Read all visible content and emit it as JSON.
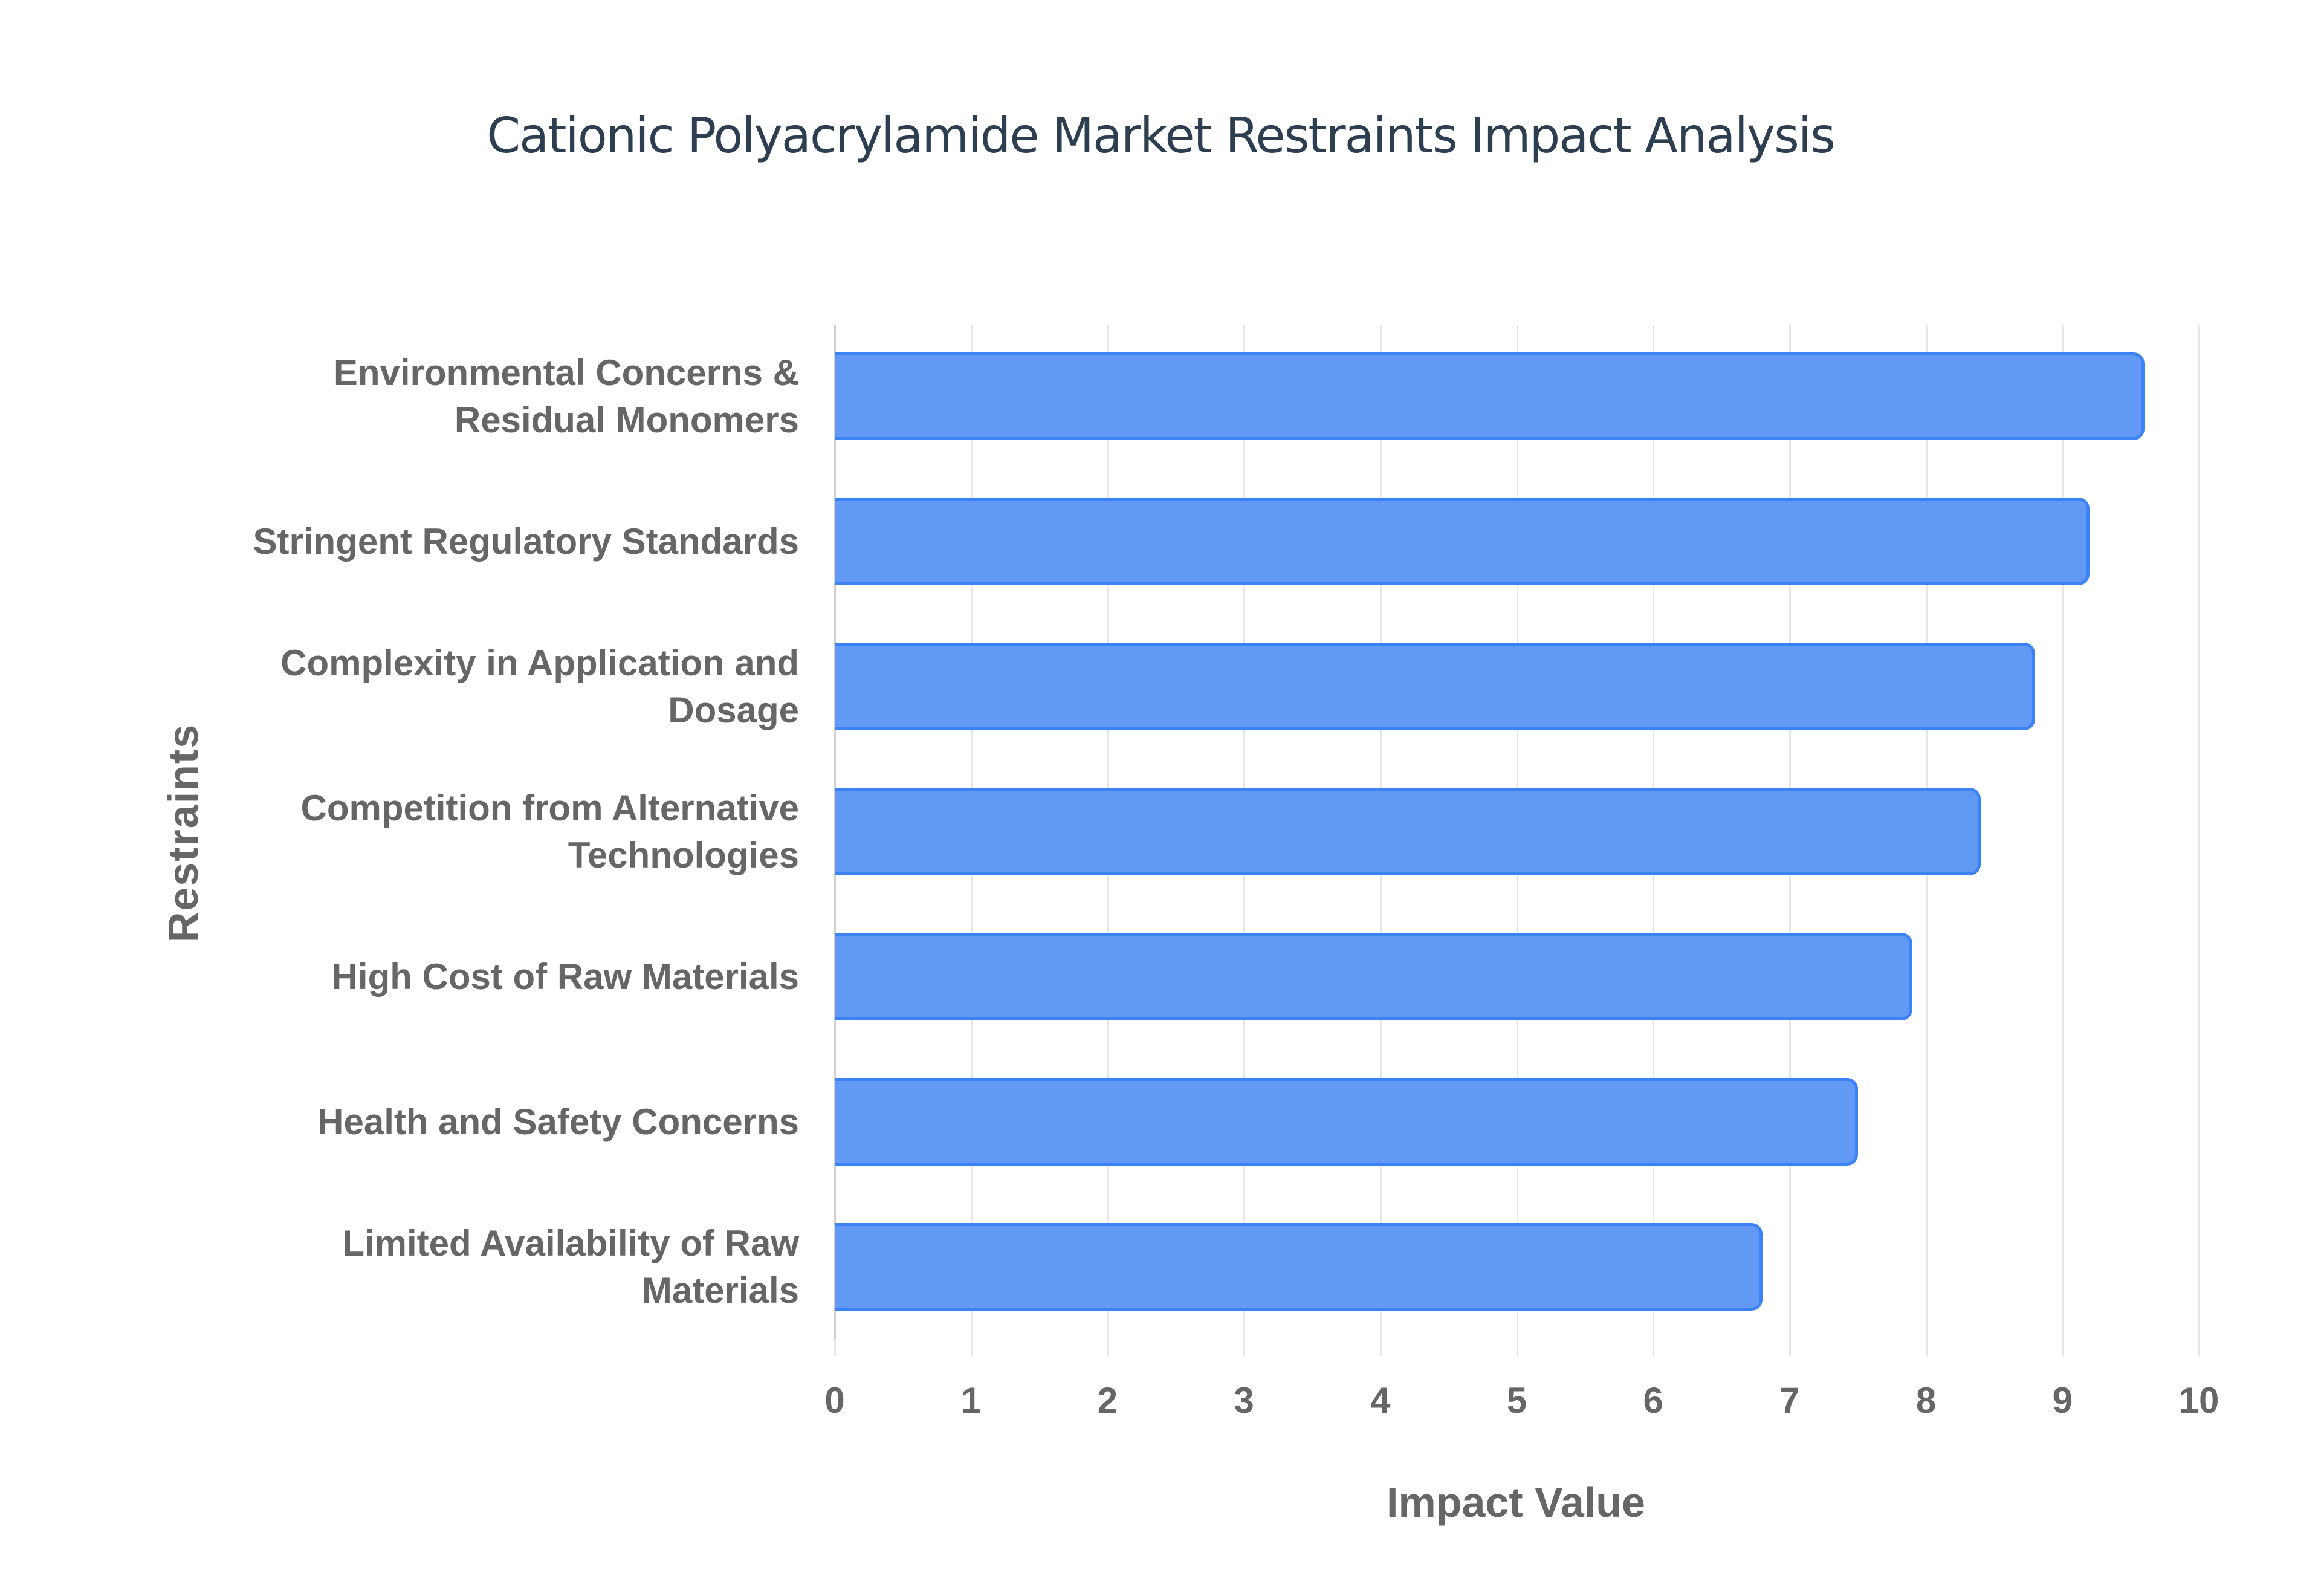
{
  "chart_data": {
    "type": "bar",
    "orientation": "horizontal",
    "title": "Cationic Polyacrylamide Market Restraints Impact Analysis",
    "xlabel": "Impact Value",
    "ylabel": "Restraints",
    "xlim": [
      0,
      10
    ],
    "x_ticks": [
      "0",
      "1",
      "2",
      "3",
      "4",
      "5",
      "6",
      "7",
      "8",
      "9",
      "10"
    ],
    "grid": true,
    "legend": null,
    "bar_color": "#6199f5",
    "bar_border_color": "#3b82f6",
    "categories": [
      "Environmental Concerns & Residual Monomers",
      "Stringent Regulatory Standards",
      "Complexity in Application and Dosage",
      "Competition from Alternative Technologies",
      "High Cost of Raw Materials",
      "Health and Safety Concerns",
      "Limited Availability of Raw Materials"
    ],
    "values": [
      9.6,
      9.2,
      8.8,
      8.4,
      7.9,
      7.5,
      6.8
    ]
  },
  "labels": [
    [
      "Environmental Concerns &",
      "Residual Monomers"
    ],
    [
      "Stringent Regulatory Standards"
    ],
    [
      "Complexity in Application and",
      "Dosage"
    ],
    [
      "Competition from Alternative",
      "Technologies"
    ],
    [
      "High Cost of Raw Materials"
    ],
    [
      "Health and Safety Concerns"
    ],
    [
      "Limited Availability of Raw",
      "Materials"
    ]
  ]
}
